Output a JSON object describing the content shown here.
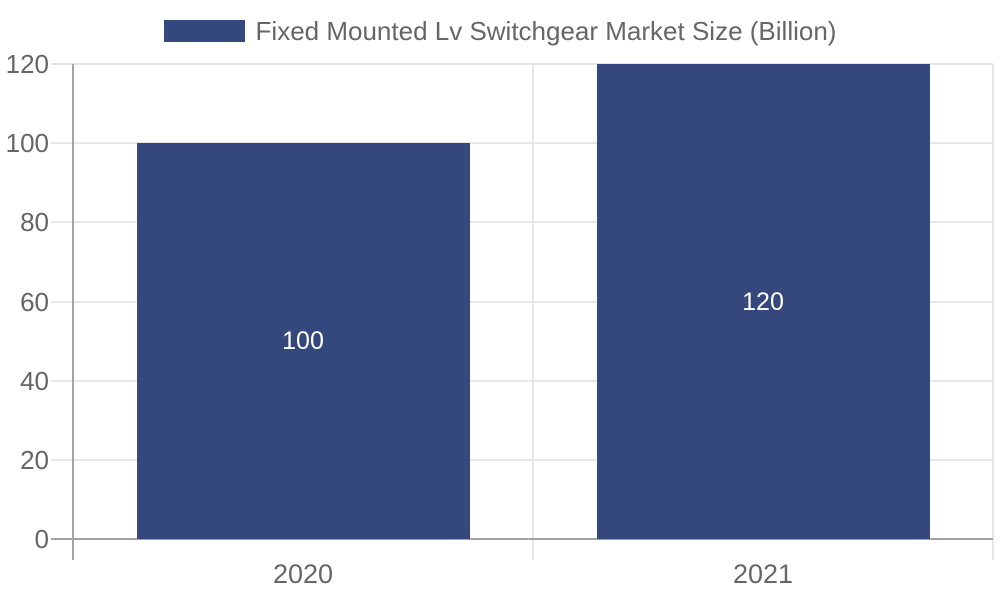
{
  "legend": {
    "label": "Fixed Mounted Lv Switchgear Market Size (Billion)"
  },
  "chart_data": {
    "type": "bar",
    "title": "Fixed Mounted Lv Switchgear Market Size (Billion)",
    "categories": [
      "2020",
      "2021"
    ],
    "values": [
      100,
      120
    ],
    "bar_value_labels": [
      "100",
      "120"
    ],
    "ylim": [
      0,
      120
    ],
    "yticks": [
      0,
      20,
      40,
      60,
      80,
      100,
      120
    ],
    "grid": true,
    "legend_position": "top",
    "xlabel": "",
    "ylabel": ""
  },
  "colors": {
    "bar": "#35487E",
    "grid_light": "#e6e6e6",
    "axis": "#a3a3a6",
    "tick_text": "#666666",
    "legend_text": "#666666",
    "bar_label_text": "#ffffff",
    "background": "#ffffff"
  }
}
